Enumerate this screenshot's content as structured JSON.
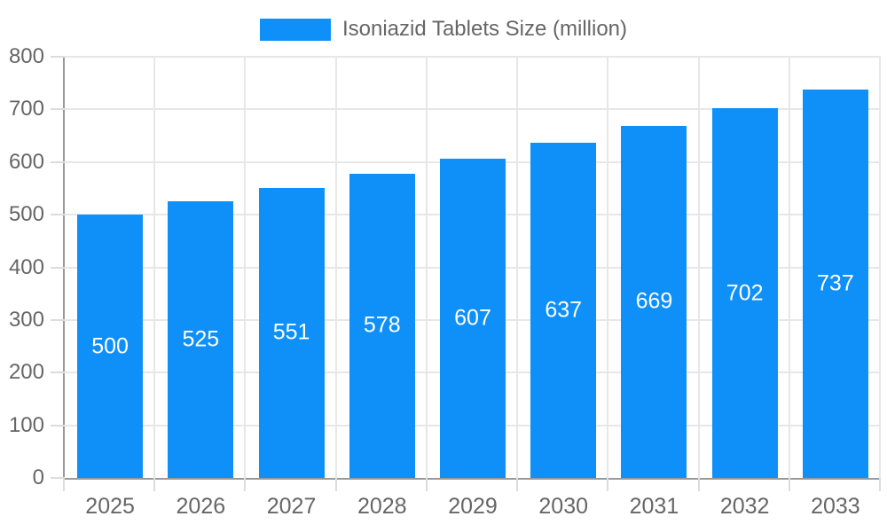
{
  "chart_data": {
    "type": "bar",
    "title": "",
    "legend_entries": [
      "Isoniazid Tablets Size (million)"
    ],
    "legend_position": "top-center",
    "categories": [
      "2025",
      "2026",
      "2027",
      "2028",
      "2029",
      "2030",
      "2031",
      "2032",
      "2033"
    ],
    "series": [
      {
        "name": "Isoniazid Tablets Size (million)",
        "values": [
          500,
          525,
          551,
          578,
          607,
          637,
          669,
          702,
          737
        ]
      }
    ],
    "data_labels": [
      "500",
      "525",
      "551",
      "578",
      "607",
      "637",
      "669",
      "702",
      "737"
    ],
    "xlabel": "",
    "ylabel": "",
    "ylim": [
      0,
      800
    ],
    "ytick_step": 100,
    "ytick_labels": [
      "0",
      "100",
      "200",
      "300",
      "400",
      "500",
      "600",
      "700",
      "800"
    ],
    "grid": true,
    "colors": {
      "bar": "#0e90f8",
      "grid": "#e7e7e7",
      "axis": "#999999",
      "tick": "#dcdcdc",
      "axis_text": "#666666",
      "bar_label_text": "#ffffff",
      "background": "#ffffff"
    }
  }
}
